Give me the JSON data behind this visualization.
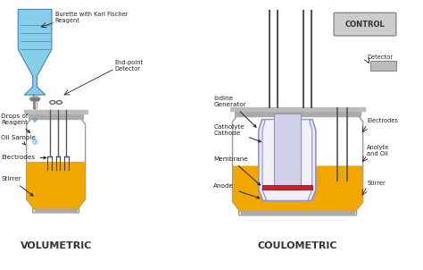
{
  "background_color": "#ffffff",
  "vol_label": "VOLUMETRIC",
  "coul_label": "COULOMETRIC",
  "control_label": "CONTROL",
  "burette_color": "#87ceeb",
  "vessel_lid_color": "#aaaaaa",
  "liquid_color": "#f0a800",
  "blue_liquid": "#add8e6",
  "purple_inner": "#9090cc",
  "red_membrane": "#cc2222",
  "drop_color": "#87ceeb"
}
